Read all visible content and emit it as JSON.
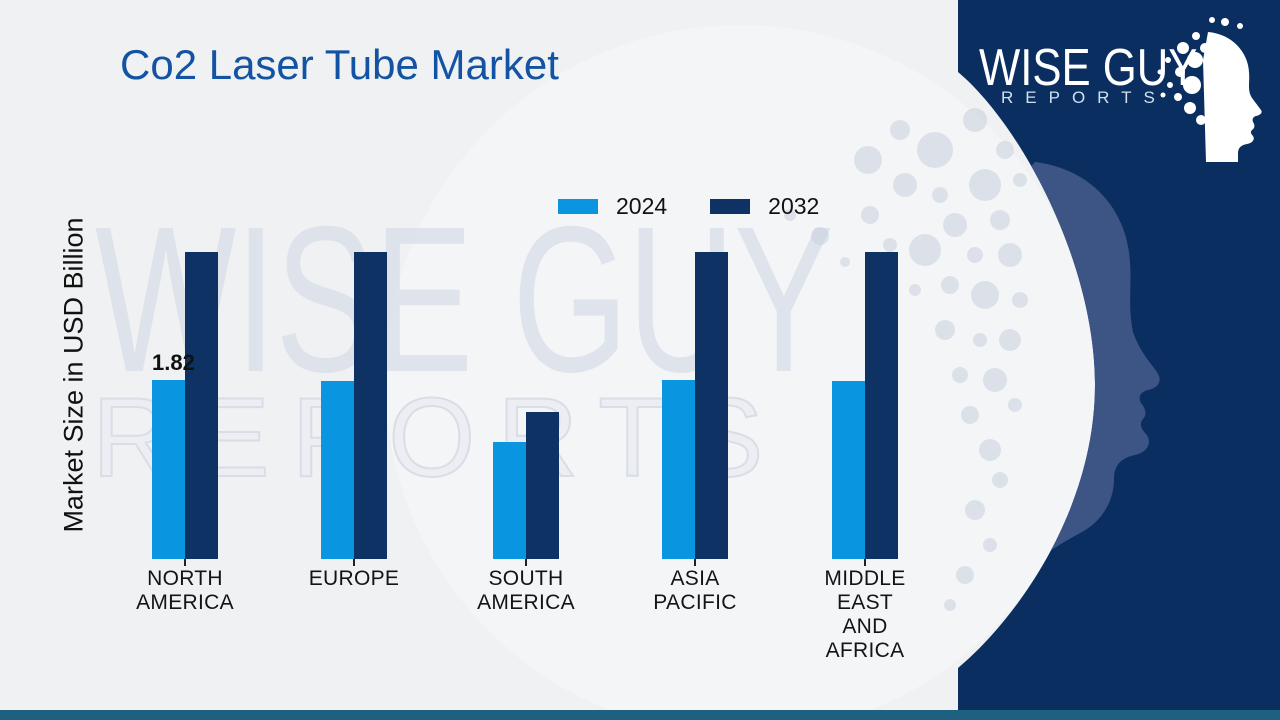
{
  "page": {
    "background_color": "#f0f1f2",
    "bottom_bar_color": "#1d6080",
    "panel_color": "#0a2e60",
    "face_silhouette_color": "#3c5584"
  },
  "title": {
    "text": "Co2 Laser Tube Market",
    "color": "#1353a4"
  },
  "y_axis": {
    "label": "Market Size in USD Billion"
  },
  "legend": {
    "items": [
      {
        "label": "2024",
        "color": "#0a95e0"
      },
      {
        "label": "2032",
        "color": "#0d3263"
      }
    ]
  },
  "logo": {
    "brand_line1": "WISE GUY",
    "brand_line2": "REPORTS"
  },
  "watermark": {
    "line1": "WISE GUY",
    "line2": "REPORTS"
  },
  "chart_data": {
    "type": "bar",
    "title": "Co2 Laser Tube Market",
    "xlabel": "",
    "ylabel": "Market Size in USD Billion",
    "categories": [
      "NORTH AMERICA",
      "EUROPE",
      "SOUTH AMERICA",
      "ASIA PACIFIC",
      "MIDDLE EAST AND AFRICA"
    ],
    "series": [
      {
        "name": "2024",
        "color": "#0a95e0",
        "values": [
          1.82,
          1.81,
          1.19,
          1.82,
          1.81
        ]
      },
      {
        "name": "2032",
        "color": "#0d3263",
        "values": [
          3.12,
          3.12,
          1.49,
          3.12,
          3.12
        ]
      }
    ],
    "value_labels": [
      {
        "series": "2024",
        "category": "NORTH AMERICA",
        "text": "1.82"
      }
    ],
    "legend_position": "top-right",
    "grid": false,
    "ylim": [
      0,
      3.4
    ],
    "note": "Only the 1.82 value label is printed on the chart; remaining values are estimated from bar heights."
  }
}
